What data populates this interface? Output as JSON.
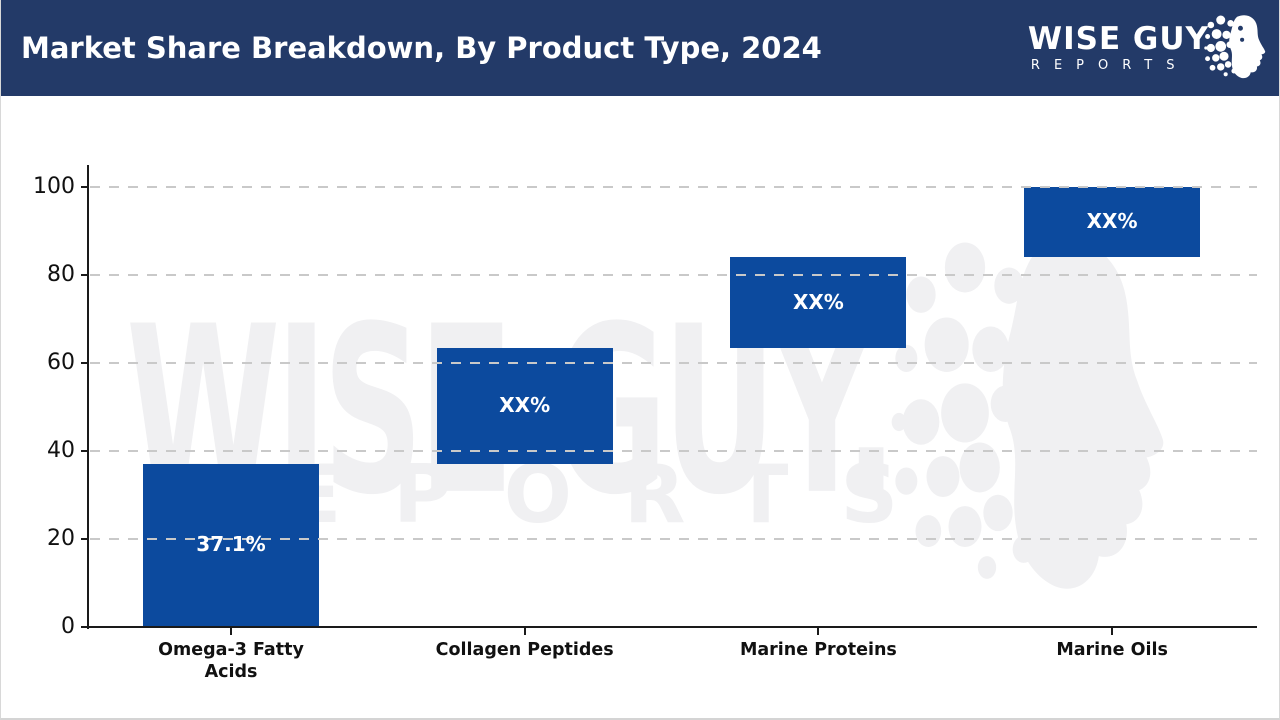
{
  "header": {
    "title": "Market Share Breakdown, By Product Type, 2024",
    "logo": {
      "wordmark": "WISE GUY",
      "subtext": "REPORTS"
    }
  },
  "watermark": {
    "wordmark": "WISE GUY.",
    "subtext": "REPORTS"
  },
  "chart_data": {
    "type": "bar",
    "subtype": "waterfall",
    "title": "Market Share Breakdown, By Product Type, 2024",
    "categories": [
      "Omega-3 Fatty Acids",
      "Collagen Peptides",
      "Marine Proteins",
      "Marine Oils"
    ],
    "tick_labels": [
      "Omega-3 Fatty\nAcids",
      "Collagen Peptides",
      "Marine Proteins",
      "Marine Oils"
    ],
    "segments": [
      {
        "category": "Omega-3 Fatty Acids",
        "start": 0,
        "end": 37.1,
        "label": "37.1%"
      },
      {
        "category": "Collagen Peptides",
        "start": 37.1,
        "end": 63.5,
        "label": "XX%"
      },
      {
        "category": "Marine Proteins",
        "start": 63.5,
        "end": 84,
        "label": "XX%"
      },
      {
        "category": "Marine Oils",
        "start": 84,
        "end": 100,
        "label": "XX%"
      }
    ],
    "ylabel": "",
    "xlabel": "",
    "yticks": [
      0,
      20,
      40,
      60,
      80,
      100
    ],
    "ylim": [
      0,
      105
    ],
    "grid": true,
    "grid_style": "dashed",
    "legend": "none"
  },
  "colors": {
    "header_bg": "#233A68",
    "bar": "#0C4A9E",
    "bar_label": "#FFFFFF",
    "axis": "#1A1A1A",
    "grid": "#C9C9C9",
    "watermark": "#F0F0F2",
    "title_text": "#FFFFFF"
  }
}
